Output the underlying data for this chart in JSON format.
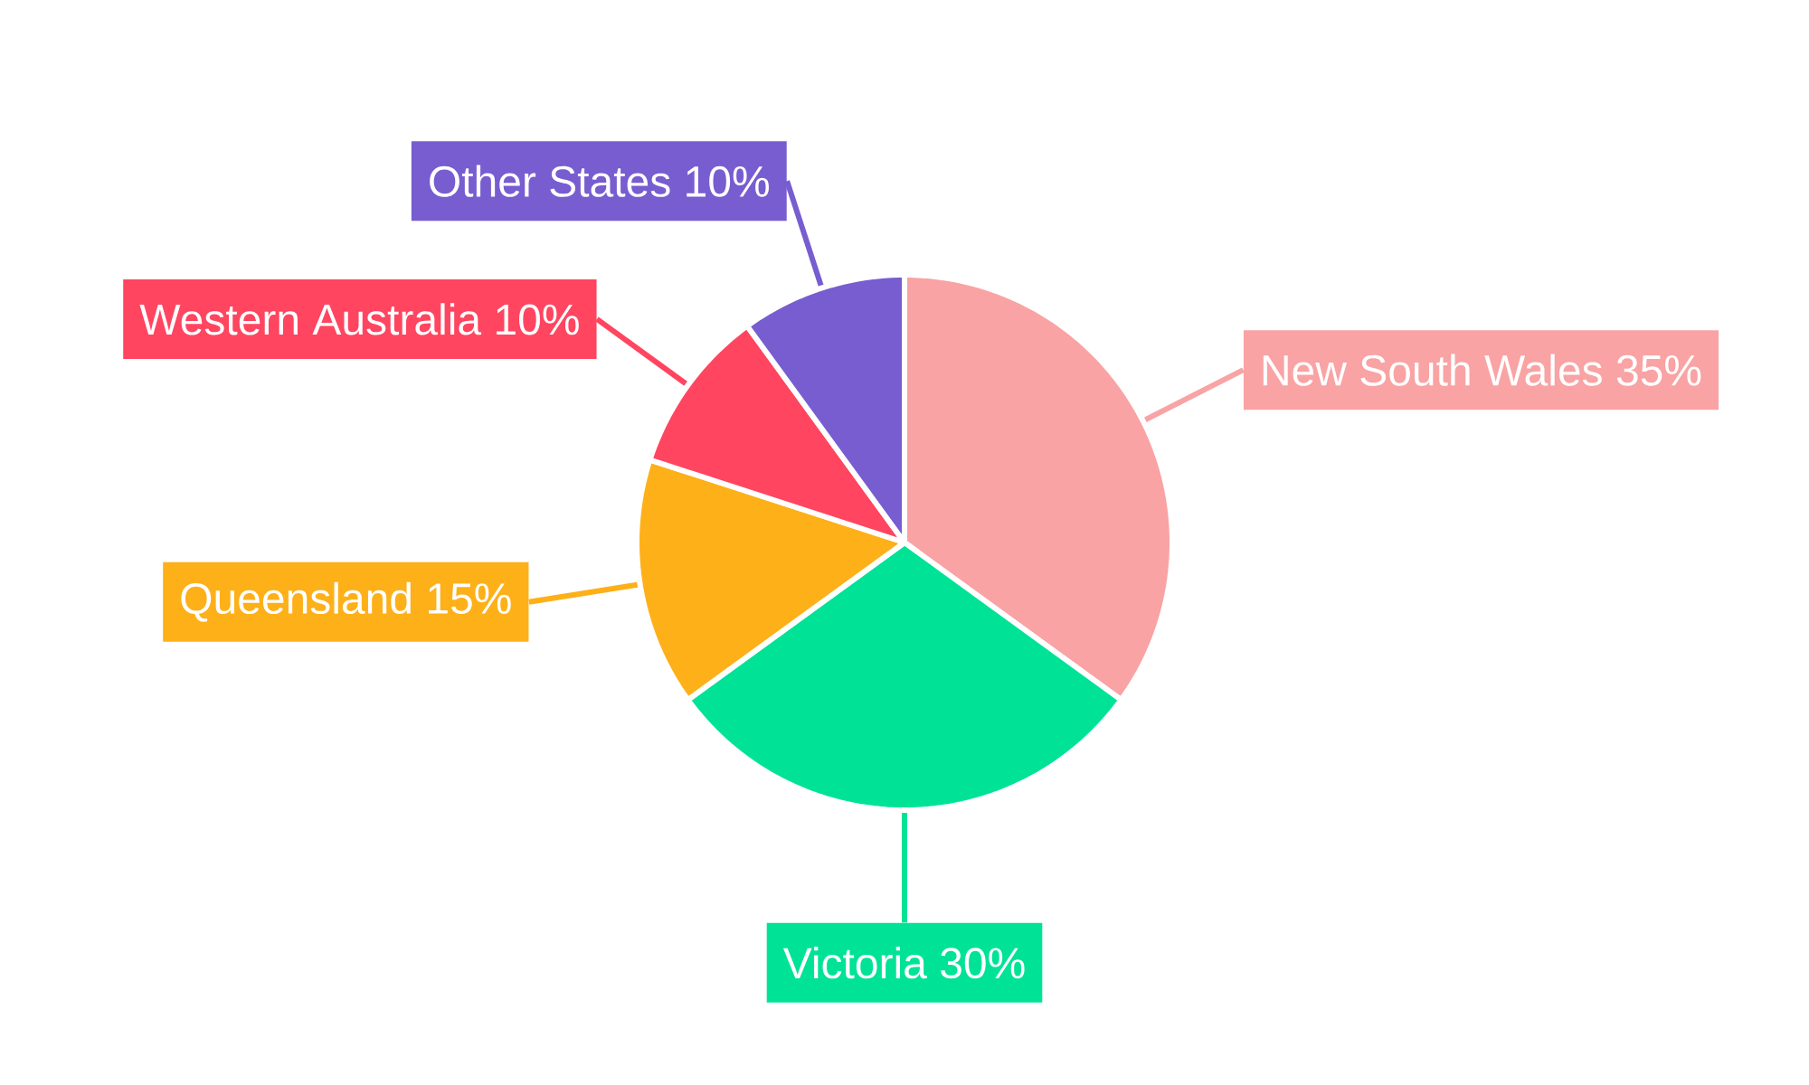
{
  "chart_data": {
    "type": "pie",
    "categories": [
      "New South Wales",
      "Victoria",
      "Queensland",
      "Western Australia",
      "Other States"
    ],
    "values": [
      35,
      30,
      15,
      10,
      10
    ],
    "colors": [
      "#f9a3a4",
      "#00e396",
      "#feb019",
      "#ff4560",
      "#775dd0"
    ],
    "value_labels": [
      "35%",
      "30%",
      "15%",
      "10%",
      "10%"
    ]
  }
}
